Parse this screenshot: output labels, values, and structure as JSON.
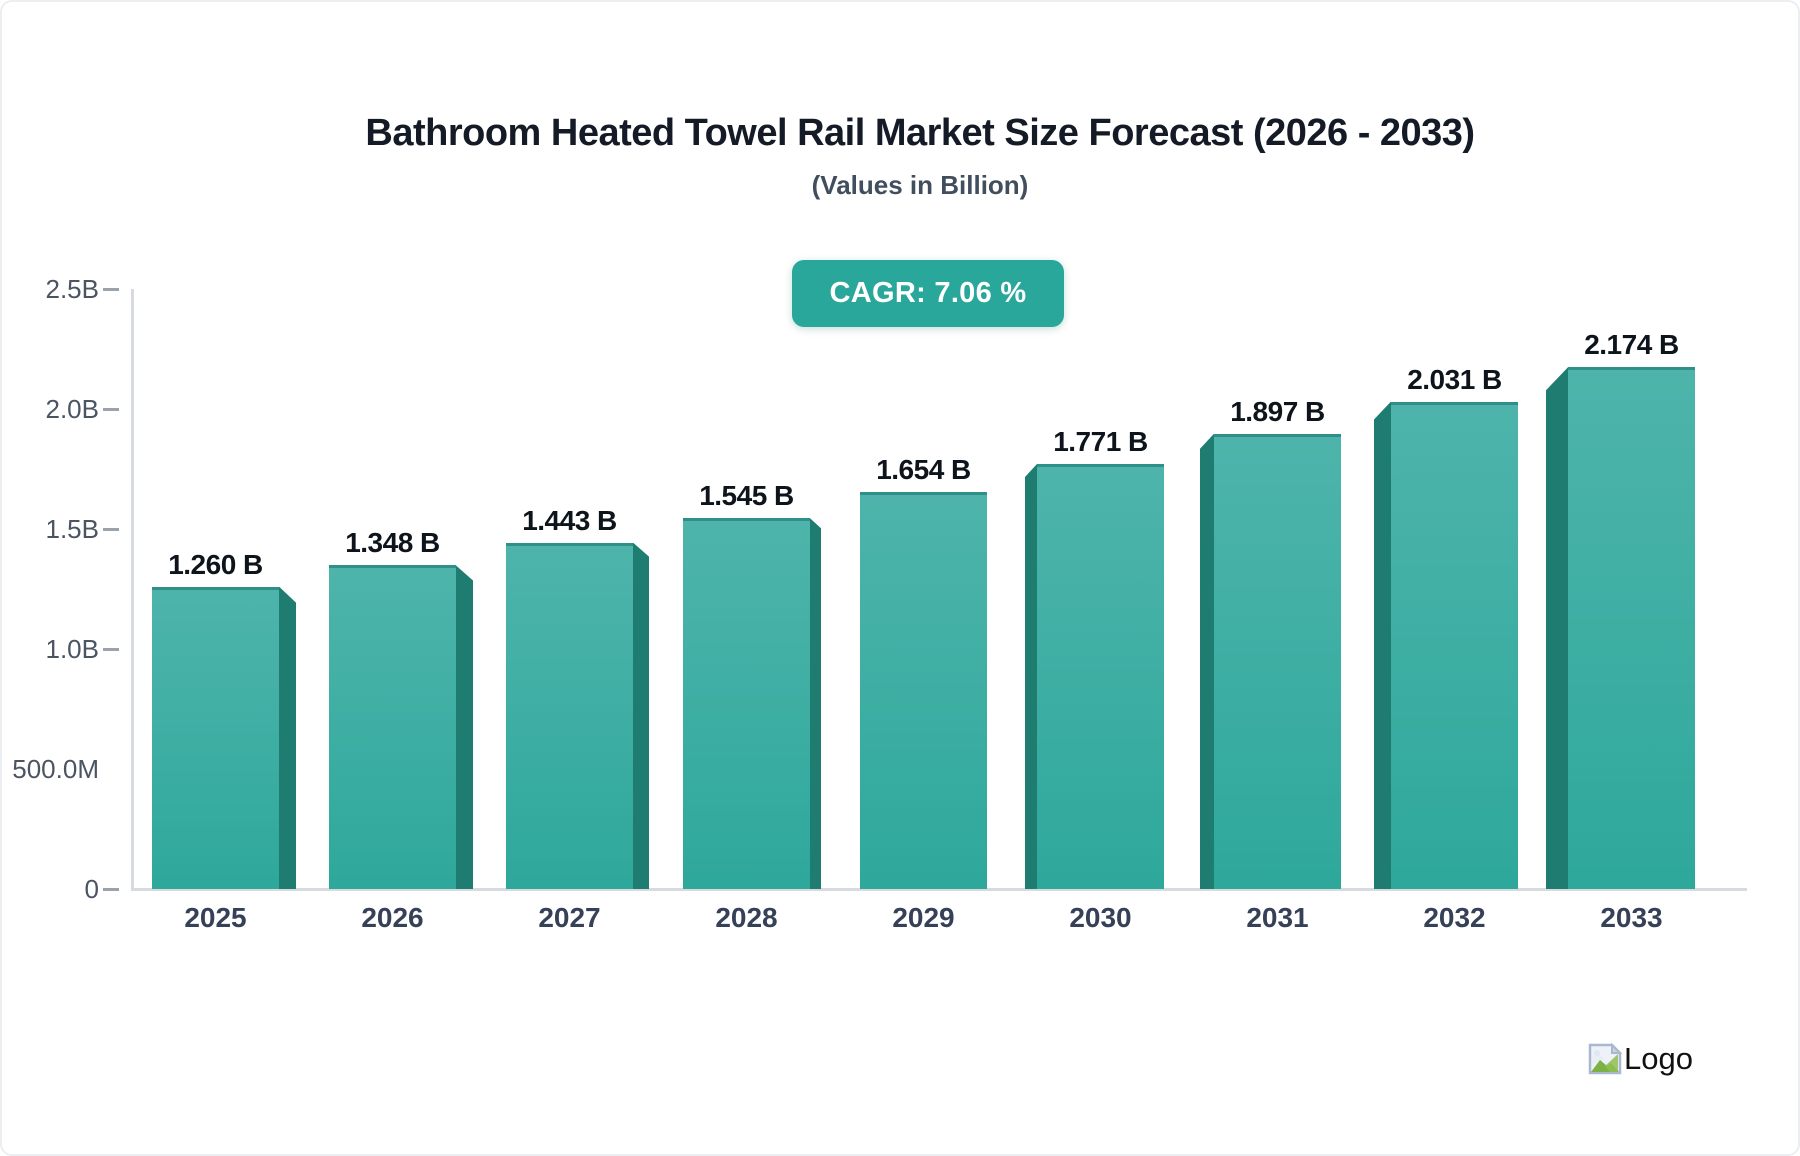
{
  "header": {
    "title": "Bathroom Heated Towel Rail Market Size Forecast (2026 - 2033)",
    "subtitle": "(Values in Billion)",
    "cagr_badge": "CAGR: 7.06 %"
  },
  "footer": {
    "logo_alt": "Logo"
  },
  "colors": {
    "accent_teal": "#2aa79b",
    "badge_bg": "#2aa79b",
    "badge_text": "#ffffff",
    "bar_face_top": "#4eb4ab",
    "bar_face_bottom": "#2ea89b",
    "bar_top_edge": "#2e9087",
    "bar_side_face": "#1e7c71",
    "axis_line": "#d7dbe0",
    "tick_dash": "#9aa2ac",
    "y_tick_label": "#4b5462",
    "x_tick_label": "#364158",
    "value_label": "#0e141b",
    "title_text": "#151b26",
    "subtitle_text": "#414e5e"
  },
  "chart_data": {
    "type": "bar",
    "title": "Bathroom Heated Towel Rail Market Size Forecast (2026 - 2033)",
    "subtitle": "(Values in Billion)",
    "annotation": "CAGR: 7.06 %",
    "categories": [
      "2025",
      "2026",
      "2027",
      "2028",
      "2029",
      "2030",
      "2031",
      "2032",
      "2033"
    ],
    "values": [
      1.26,
      1.348,
      1.443,
      1.545,
      1.654,
      1.771,
      1.897,
      2.031,
      2.174
    ],
    "value_labels": [
      "1.260 B",
      "1.348 B",
      "1.443 B",
      "1.545 B",
      "1.654 B",
      "1.771 B",
      "1.897 B",
      "2.031 B",
      "2.174 B"
    ],
    "xlabel": "",
    "ylabel": "",
    "ylim": [
      0,
      2.5
    ],
    "y_ticks": [
      {
        "label": "0",
        "value": 0,
        "dash": true
      },
      {
        "label": "500.0M",
        "value": 0.5,
        "dash": false
      },
      {
        "label": "1.0B",
        "value": 1.0,
        "dash": true
      },
      {
        "label": "1.5B",
        "value": 1.5,
        "dash": true
      },
      {
        "label": "2.0B",
        "value": 2.0,
        "dash": true
      },
      {
        "label": "2.5B",
        "value": 2.5,
        "dash": true
      }
    ],
    "grid": false,
    "legend": null,
    "bar_style": "3d-perspective-teal"
  }
}
